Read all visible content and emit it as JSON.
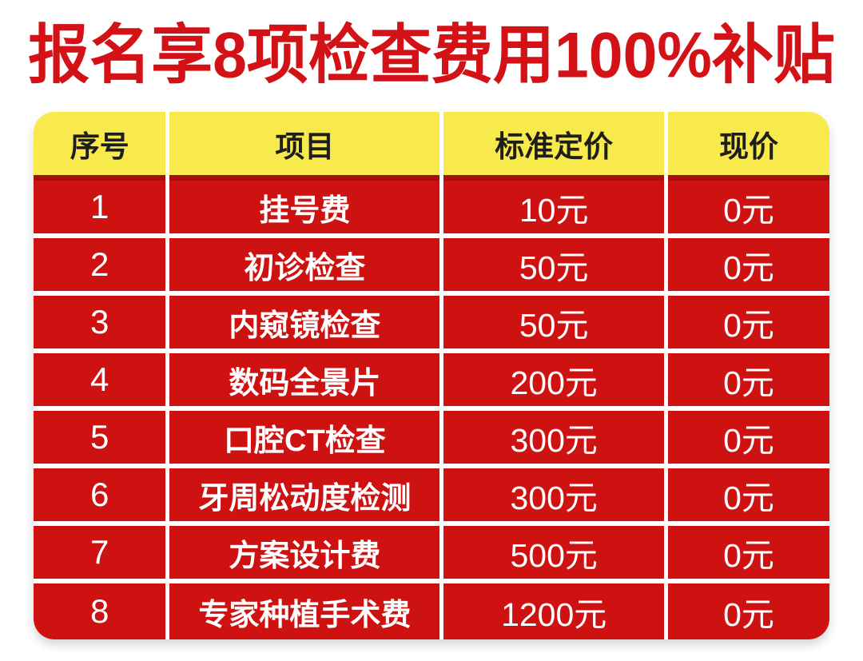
{
  "title": "报名享8项检查费用100%补贴",
  "colors": {
    "title_red": "#d31217",
    "row_red": "#ce1212",
    "header_yellow": "#f8e94d",
    "header_underline_dark_red": "#a30e0e",
    "separator_white": "#ffffff",
    "header_text": "#1e1e1c",
    "row_text": "#ffffff"
  },
  "table": {
    "headers": [
      "序号",
      "项目",
      "标准定价",
      "现价"
    ],
    "rows": [
      [
        "1",
        "挂号费",
        "10元",
        "0元"
      ],
      [
        "2",
        "初诊检查",
        "50元",
        "0元"
      ],
      [
        "3",
        "内窥镜检查",
        "50元",
        "0元"
      ],
      [
        "4",
        "数码全景片",
        "200元",
        "0元"
      ],
      [
        "5",
        "口腔CT检查",
        "300元",
        "0元"
      ],
      [
        "6",
        "牙周松动度检测",
        "300元",
        "0元"
      ],
      [
        "7",
        "方案设计费",
        "500元",
        "0元"
      ],
      [
        "8",
        "专家种植手术费",
        "1200元",
        "0元"
      ]
    ]
  },
  "chart_data": {
    "type": "table",
    "title": "报名享8项检查费用100%补贴",
    "columns": [
      "序号",
      "项目",
      "标准定价",
      "现价"
    ],
    "rows": [
      [
        "1",
        "挂号费",
        "10元",
        "0元"
      ],
      [
        "2",
        "初诊检查",
        "50元",
        "0元"
      ],
      [
        "3",
        "内窥镜检查",
        "50元",
        "0元"
      ],
      [
        "4",
        "数码全景片",
        "200元",
        "0元"
      ],
      [
        "5",
        "口腔CT检查",
        "300元",
        "0元"
      ],
      [
        "6",
        "牙周松动度检测",
        "300元",
        "0元"
      ],
      [
        "7",
        "方案设计费",
        "500元",
        "0元"
      ],
      [
        "8",
        "专家种植手术费",
        "1200元",
        "0元"
      ]
    ],
    "items": [
      {
        "no": 1,
        "item": "挂号费",
        "standard_price_yuan": 10,
        "current_price_yuan": 0
      },
      {
        "no": 2,
        "item": "初诊检查",
        "standard_price_yuan": 50,
        "current_price_yuan": 0
      },
      {
        "no": 3,
        "item": "内窥镜检查",
        "standard_price_yuan": 50,
        "current_price_yuan": 0
      },
      {
        "no": 4,
        "item": "数码全景片",
        "standard_price_yuan": 200,
        "current_price_yuan": 0
      },
      {
        "no": 5,
        "item": "口腔CT检查",
        "standard_price_yuan": 300,
        "current_price_yuan": 0
      },
      {
        "no": 6,
        "item": "牙周松动度检测",
        "standard_price_yuan": 300,
        "current_price_yuan": 0
      },
      {
        "no": 7,
        "item": "方案设计费",
        "standard_price_yuan": 500,
        "current_price_yuan": 0
      },
      {
        "no": 8,
        "item": "专家种植手术费",
        "standard_price_yuan": 1200,
        "current_price_yuan": 0
      }
    ]
  }
}
